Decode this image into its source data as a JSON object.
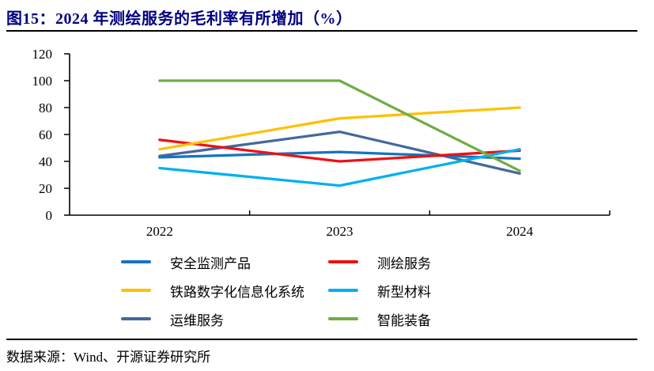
{
  "figure": {
    "title": "图15：2024 年测绘服务的毛利率有所增加（%）",
    "source": "数据来源：Wind、开源证券研究所"
  },
  "chart_data": {
    "type": "line",
    "title": "2024 年测绘服务的毛利率有所增加（%）",
    "categories": [
      "2022",
      "2023",
      "2024"
    ],
    "series": [
      {
        "name": "安全监测产品",
        "color": "#1574BF",
        "values": [
          43,
          47,
          42
        ]
      },
      {
        "name": "测绘服务",
        "color": "#EE1111",
        "values": [
          56,
          40,
          48
        ]
      },
      {
        "name": "铁路数字化信息化系统",
        "color": "#FFC000",
        "values": [
          49,
          72,
          80
        ]
      },
      {
        "name": "新型材料",
        "color": "#00B0F0",
        "values": [
          35,
          22,
          49
        ]
      },
      {
        "name": "运维服务",
        "color": "#44689D",
        "values": [
          44,
          62,
          31
        ]
      },
      {
        "name": "智能装备",
        "color": "#70AD47",
        "values": [
          100,
          100,
          33
        ]
      }
    ],
    "xlabel": "",
    "ylabel": "",
    "ylim": [
      0,
      120
    ],
    "yticks": [
      0,
      20,
      40,
      60,
      80,
      100,
      120
    ],
    "grid": false,
    "legend_position": "bottom",
    "axis_color": "#000000"
  }
}
